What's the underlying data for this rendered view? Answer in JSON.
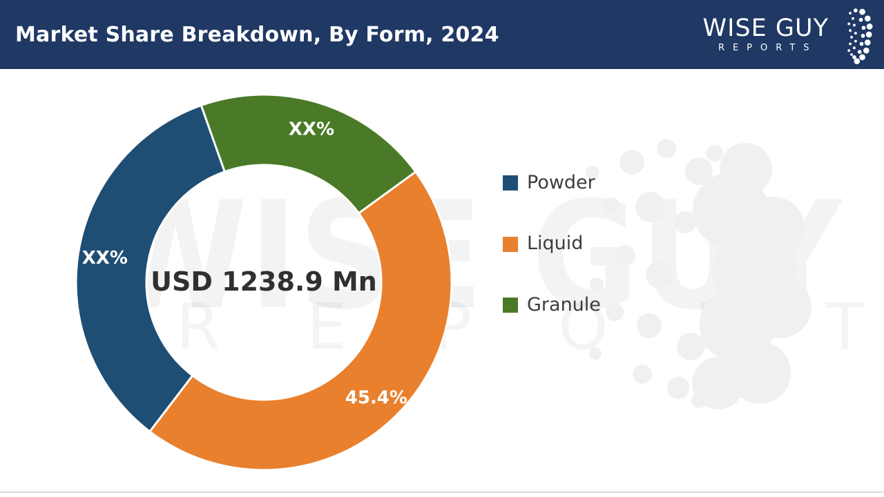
{
  "header": {
    "title": "Market Share Breakdown, By Form, 2024",
    "logo": {
      "wordmark": "WISE GUY",
      "subtext": "REPORTS"
    }
  },
  "watermark": {
    "wordmark": "WISE GUY",
    "subtext": "R E P O R T S"
  },
  "chart_data": {
    "type": "donut",
    "title": "Market Share Breakdown, By Form, 2024",
    "center_label": "USD 1238.9 Mn",
    "start_angle_deg": -19.5,
    "segments": [
      {
        "label": "Granule",
        "display_pct": "XX%",
        "value_pct": 20.4,
        "color": "#4a7a28"
      },
      {
        "label": "Liquid",
        "display_pct": "45.4%",
        "value_pct": 45.4,
        "color": "#e8802e"
      },
      {
        "label": "Powder",
        "display_pct": "XX%",
        "value_pct": 34.2,
        "color": "#1f4e74"
      }
    ],
    "legend_position": "right"
  },
  "legend": {
    "items": [
      {
        "label": "Powder",
        "color": "#1f4e74"
      },
      {
        "label": "Liquid",
        "color": "#e8802e"
      },
      {
        "label": "Granule",
        "color": "#4a7a28"
      }
    ]
  },
  "colors": {
    "header_bg": "#1f3864",
    "footer_divider": "#d9d9d9",
    "center_text": "#303030",
    "legend_text": "#3c3c3c"
  }
}
